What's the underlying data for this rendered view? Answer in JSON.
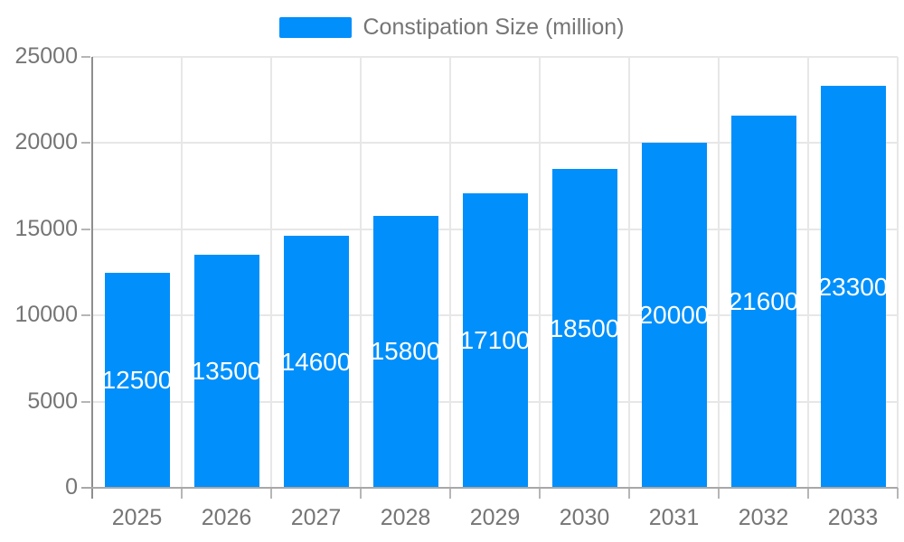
{
  "chart_data": {
    "type": "bar",
    "title": "",
    "categories": [
      "2025",
      "2026",
      "2027",
      "2028",
      "2029",
      "2030",
      "2031",
      "2032",
      "2033"
    ],
    "series": [
      {
        "name": "Constipation Size (million)",
        "values": [
          12500,
          13500,
          14600,
          15800,
          17100,
          18500,
          20000,
          21600,
          23300
        ]
      }
    ],
    "data_labels": [
      "12500",
      "13500",
      "14600",
      "15800",
      "17100",
      "18500",
      "20000",
      "21600",
      "23300"
    ],
    "xlabel": "",
    "ylabel": "",
    "ylim": [
      0,
      25000
    ],
    "ytick_step": 5000,
    "ytick_labels": [
      "0",
      "5000",
      "10000",
      "15000",
      "20000",
      "25000"
    ],
    "grid": true,
    "legend_position": "top"
  },
  "colors": {
    "bar": "#008FFB",
    "grid": "#e7e7e7",
    "axis_text": "#757575",
    "data_label_text": "#ffffff",
    "y_axis_line": "#8e8e8e",
    "x_axis_line": "#a8a8a8",
    "tick": "#b6b6b6",
    "background": "#ffffff"
  }
}
